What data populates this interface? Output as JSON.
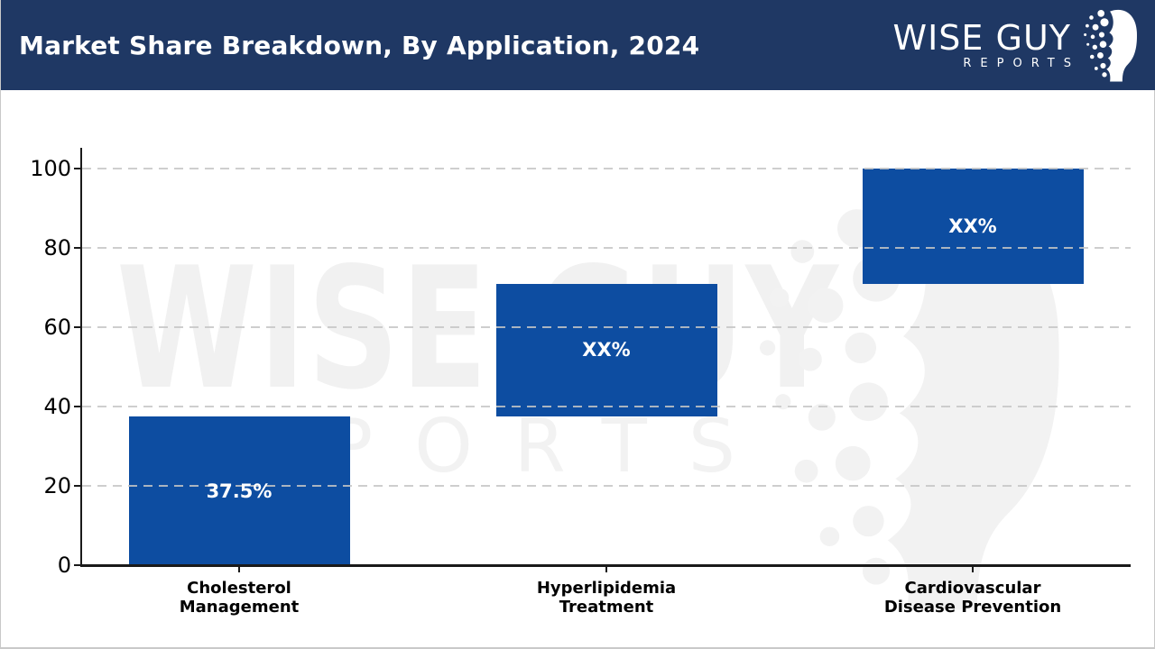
{
  "header": {
    "title": "Market Share Breakdown, By Application, 2024",
    "logo": {
      "line1": "WISE GUY",
      "line2": "REPORTS"
    }
  },
  "watermark": {
    "line1": "WISE GUY",
    "line2": "REPORTS"
  },
  "chart_data": {
    "type": "bar",
    "subtype": "waterfall-segments",
    "title": "Market Share Breakdown, By Application, 2024",
    "categories": [
      {
        "line1": "Cholesterol",
        "line2": "Management"
      },
      {
        "line1": "Hyperlipidemia",
        "line2": "Treatment"
      },
      {
        "line1": "Cardiovascular",
        "line2": "Disease Prevention"
      }
    ],
    "segments": [
      {
        "label": "37.5%",
        "start": 0,
        "end": 37.5
      },
      {
        "label": "XX%",
        "start": 37.5,
        "end": 71
      },
      {
        "label": "XX%",
        "start": 71,
        "end": 100
      }
    ],
    "yticks": [
      0,
      20,
      40,
      60,
      80,
      100
    ],
    "ylim": [
      0,
      100
    ],
    "grid": "horizontal-dashed",
    "legend": "none",
    "colors": {
      "bar": "#0d4da1",
      "header_bg": "#1f3864",
      "grid_line": "#c6c6c6",
      "axis": "#1a1a1a",
      "bar_label_text": "#ffffff",
      "watermark": "#f1f1f1"
    }
  }
}
